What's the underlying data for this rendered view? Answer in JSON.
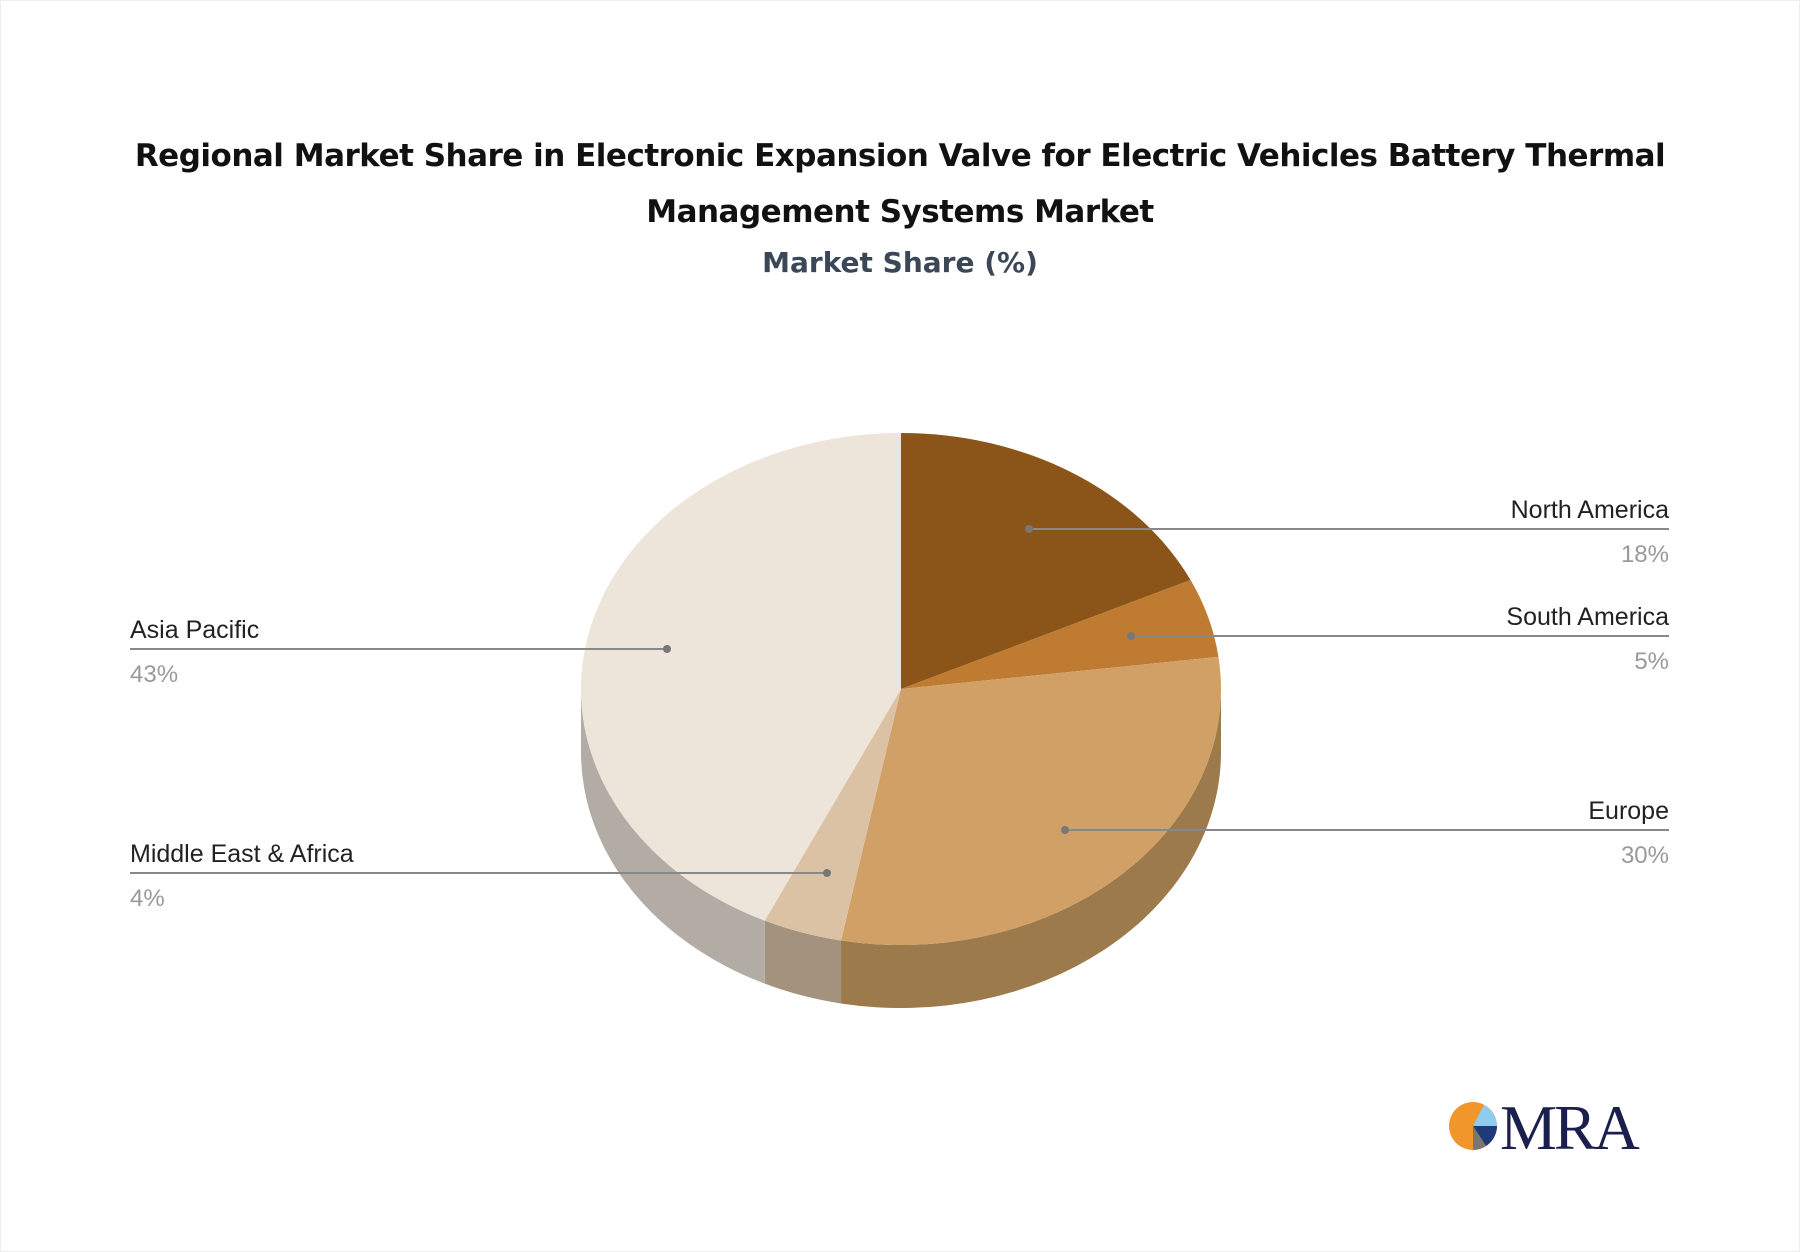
{
  "chart_data": {
    "type": "pie",
    "title": "Regional Market Share in Electronic Expansion Valve for Electric Vehicles Battery Thermal Management Systems Market",
    "subtitle": "Market Share (%)",
    "style": "3d",
    "slices": [
      {
        "label": "North America",
        "value": 18,
        "display": "18%",
        "color": "#8B5519",
        "side_color": "#6E4414",
        "label_side": "right"
      },
      {
        "label": "South America",
        "value": 5,
        "display": "5%",
        "color": "#C07B32",
        "side_color": "#9A6228",
        "label_side": "right"
      },
      {
        "label": "Europe",
        "value": 30,
        "display": "30%",
        "color": "#D1A067",
        "side_color": "#9C7A4C",
        "label_side": "right"
      },
      {
        "label": "Middle East & Africa",
        "value": 4,
        "display": "4%",
        "color": "#DCC2A5",
        "side_color": "#A3927E",
        "label_side": "left"
      },
      {
        "label": "Asia Pacific",
        "value": 43,
        "display": "43%",
        "color": "#EDE4DA",
        "side_color": "#B3ACA5",
        "label_side": "left"
      }
    ]
  },
  "logo": {
    "text": "MRA",
    "colors": [
      "#F0962A",
      "#8ECDF0",
      "#1E3A7A",
      "#7D7670"
    ]
  }
}
